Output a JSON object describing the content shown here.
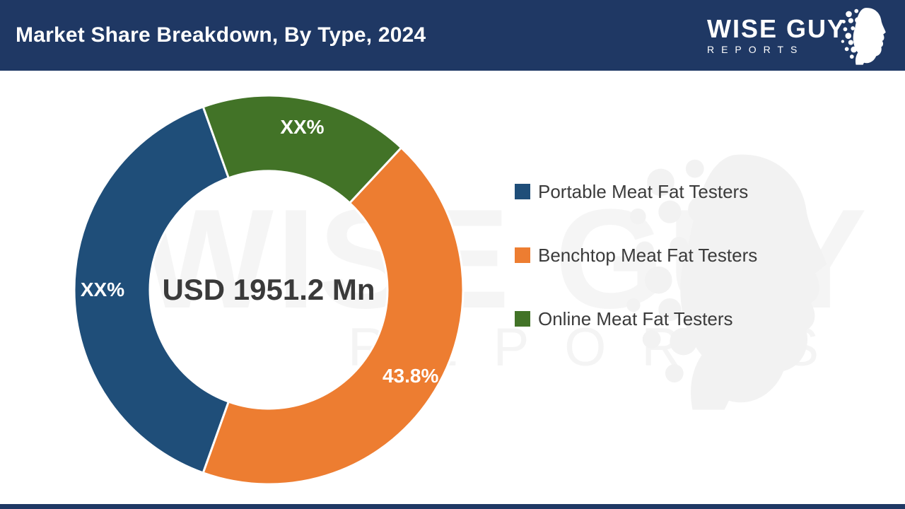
{
  "header": {
    "title": "Market Share Breakdown, By Type, 2024",
    "bg_color": "#1f3864",
    "logo": {
      "line1": "WISE GUY",
      "line2": "REPORTS"
    }
  },
  "chart_data": {
    "type": "pie",
    "subtype": "donut",
    "title": "Market Share Breakdown, By Type, 2024",
    "center_label": "USD 1951.2 Mn",
    "legend_position": "right",
    "outer_radius_px": 275,
    "inner_radius_px": 168,
    "segments": [
      {
        "name": "Portable Meat Fat Testers",
        "label": "XX%",
        "value_pct_estimate": 39.0,
        "start_angle": 199.7,
        "end_angle": 340.3,
        "color": "#1f4e79"
      },
      {
        "name": "Benchtop Meat Fat Testers",
        "label": "43.8%",
        "value_pct_estimate": 43.8,
        "start_angle": 43.0,
        "end_angle": 199.7,
        "color": "#ed7d31"
      },
      {
        "name": "Online Meat Fat Testers",
        "label": "XX%",
        "value_pct_estimate": 17.2,
        "start_angle": 340.3,
        "end_angle": 403.0,
        "color": "#427327"
      }
    ]
  },
  "legend": {
    "items": [
      {
        "label": "Portable Meat Fat Testers",
        "color": "#1f4e79"
      },
      {
        "label": "Benchtop Meat Fat Testers",
        "color": "#ed7d31"
      },
      {
        "label": "Online Meat Fat Testers",
        "color": "#427327"
      }
    ]
  },
  "watermark": {
    "line1": "WISE GUY",
    "line2": "REPORTS"
  },
  "footer": {
    "bg_color": "#1f3864"
  }
}
